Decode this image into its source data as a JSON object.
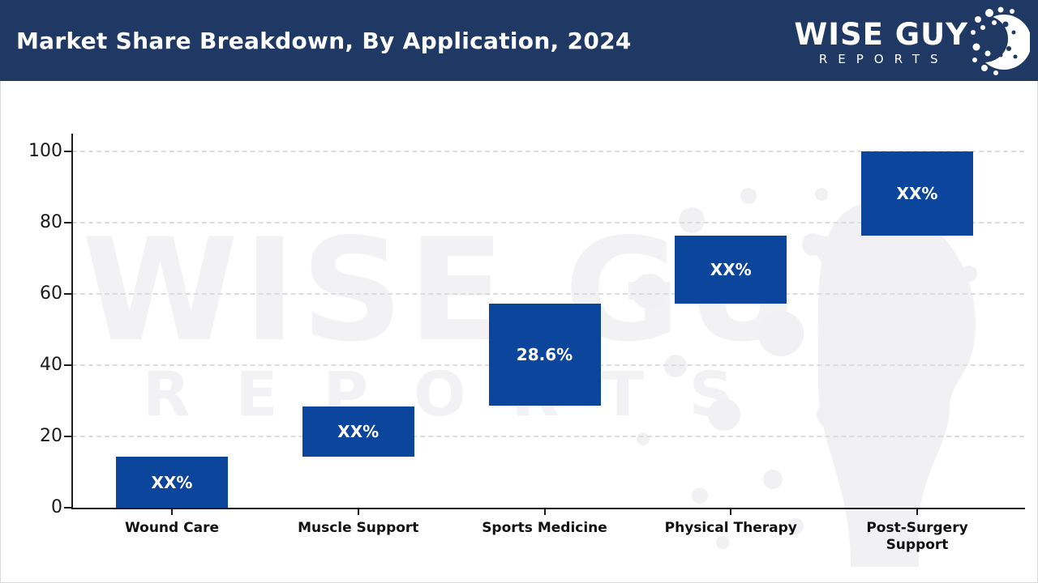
{
  "header": {
    "title": "Market Share Breakdown, By Application, 2024",
    "logo_line1": "WISE GUY",
    "logo_line2": "REPORTS"
  },
  "watermark": {
    "line1": "WISE GUY",
    "line2": "REPORTS"
  },
  "chart_data": {
    "type": "bar",
    "subtype": "floating-waterfall",
    "title": "Market Share Breakdown, By Application, 2024",
    "categories": [
      "Wound Care",
      "Muscle Support",
      "Sports Medicine",
      "Physical Therapy",
      "Post-Surgery Support"
    ],
    "segments": [
      {
        "category": "Wound Care",
        "start": 0,
        "end": 14.3,
        "label": "XX%"
      },
      {
        "category": "Muscle Support",
        "start": 14.3,
        "end": 28.5,
        "label": "XX%"
      },
      {
        "category": "Sports Medicine",
        "start": 28.6,
        "end": 57.2,
        "label": "28.6%"
      },
      {
        "category": "Physical Therapy",
        "start": 57.2,
        "end": 76.4,
        "label": "XX%"
      },
      {
        "category": "Post-Surgery Support",
        "start": 76.4,
        "end": 100,
        "label": "XX%"
      }
    ],
    "xlabel": "",
    "ylabel": "",
    "ylim": [
      0,
      100
    ],
    "yticks": [
      0,
      20,
      40,
      60,
      80,
      100
    ],
    "grid": "horizontal-dashed",
    "legend": "none"
  },
  "colors": {
    "header_bg": "#1F3864",
    "bar": "#0C459C",
    "grid": "#DDDDDD",
    "axis": "#1A1A1A",
    "watermark": "#F2F2F4"
  }
}
